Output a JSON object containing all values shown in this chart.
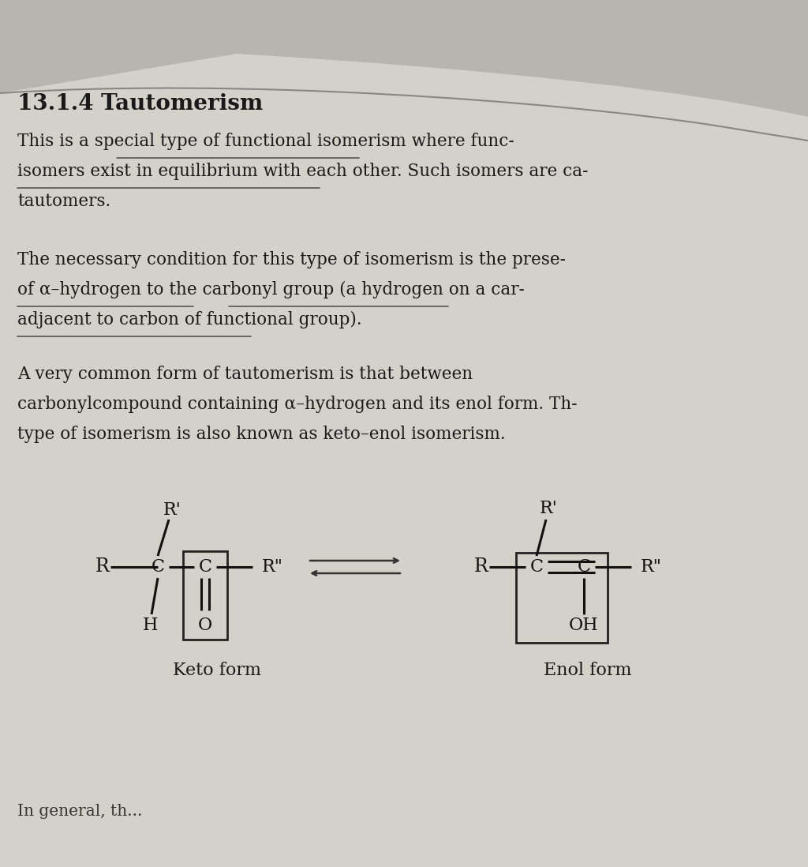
{
  "bg_color": "#cbc7c1",
  "bg_page_color": "#d4d0ca",
  "title": "13.1.4 Tautomerism",
  "title_fontsize": 20,
  "body_fontsize": 15.5,
  "label_fontsize": 15,
  "text_color": "#1a1a1a",
  "para1": [
    "This is a special type of functional isomerism where func-",
    "isomers exist in equilibrium with each other. Such isomers are ca-",
    "tautomers."
  ],
  "para2": [
    "The necessary condition for this type of isomerism is the prese-",
    "of α–hydrogen to the carbonyl group (a hydrogen on a car-",
    "adjacent to carbon of functional group)."
  ],
  "para3": [
    "A very common form of tautomerism is that between",
    "carbonylcompound containing α–hydrogen and its enol form. Th-",
    "type of isomerism is also known as keto–enol isomerism."
  ],
  "keto_label": "Keto form",
  "enol_label": "Enol form",
  "bottom_text": "In general, th..."
}
